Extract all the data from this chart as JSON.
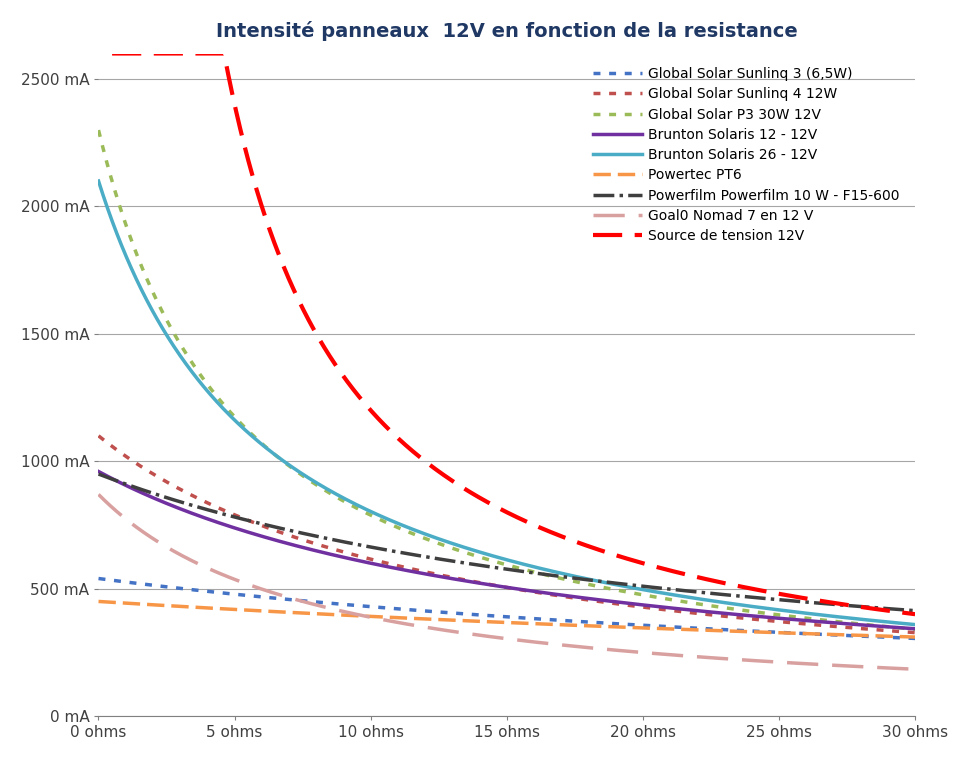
{
  "title": "Intensité panneaux  12V en fonction de la resistance",
  "title_color": "#1F3864",
  "xlim": [
    0,
    30
  ],
  "ylim": [
    0,
    2600
  ],
  "yticks": [
    0,
    500,
    1000,
    1500,
    2000,
    2500
  ],
  "ytick_labels": [
    "0 mA",
    "500 mA",
    "1000 mA",
    "1500 mA",
    "2000 mA",
    "2500 mA"
  ],
  "xticks": [
    0,
    5,
    10,
    15,
    20,
    25,
    30
  ],
  "xtick_labels": [
    "0 ohms",
    "5 ohms",
    "10 ohms",
    "15 ohms",
    "20 ohms",
    "25 ohms",
    "30 ohms"
  ],
  "series": [
    {
      "label": "Global Solar Sunlinq 3 (6,5W)",
      "color": "#4472C4",
      "ls_type": "dotted",
      "lw": 2.5,
      "Isc": 540,
      "Voc": 21.0,
      "n": 1.0
    },
    {
      "label": "Global Solar Sunlinq 4 12W",
      "color": "#C0504D",
      "ls_type": "dotted",
      "lw": 2.5,
      "Isc": 1100,
      "Voc": 14.0,
      "n": 1.0
    },
    {
      "label": "Global Solar P3 30W 12V",
      "color": "#9BBB59",
      "ls_type": "dotted",
      "lw": 2.5,
      "Isc": 2300,
      "Voc": 12.0,
      "n": 1.0
    },
    {
      "label": "Brunton Solaris 12 - 12V",
      "color": "#7030A0",
      "ls_type": "solid",
      "lw": 2.5,
      "Isc": 960,
      "Voc": 16.0,
      "n": 1.5
    },
    {
      "label": "Brunton Solaris 26 - 12V",
      "color": "#4BACC6",
      "ls_type": "solid",
      "lw": 2.5,
      "Isc": 2100,
      "Voc": 13.0,
      "n": 1.0
    },
    {
      "label": "Powertec PT6",
      "color": "#F79646",
      "ls_type": "dashed_orange",
      "lw": 2.5,
      "Isc": 450,
      "Voc": 30.0,
      "n": 1.0
    },
    {
      "label": "Powerfilm Powerfilm 10 W - F15-600",
      "color": "#3F3F3F",
      "ls_type": "dashdot",
      "lw": 2.5,
      "Isc": 950,
      "Voc": 22.0,
      "n": 1.0
    },
    {
      "label": "Goal0 Nomad 7 en 12 V",
      "color": "#D9A0A0",
      "ls_type": "dashed_long",
      "lw": 2.5,
      "Isc": 870,
      "Voc": 7.0,
      "n": 1.0,
      "floor": 150
    },
    {
      "label": "Source de tension 12V",
      "color": "#FF0000",
      "ls_type": "dashed_red",
      "lw": 3.0,
      "Isc": -1,
      "Voc": 12.0,
      "n": 1.0
    }
  ],
  "background_color": "#FFFFFF",
  "grid_color": "#A6A6A6"
}
